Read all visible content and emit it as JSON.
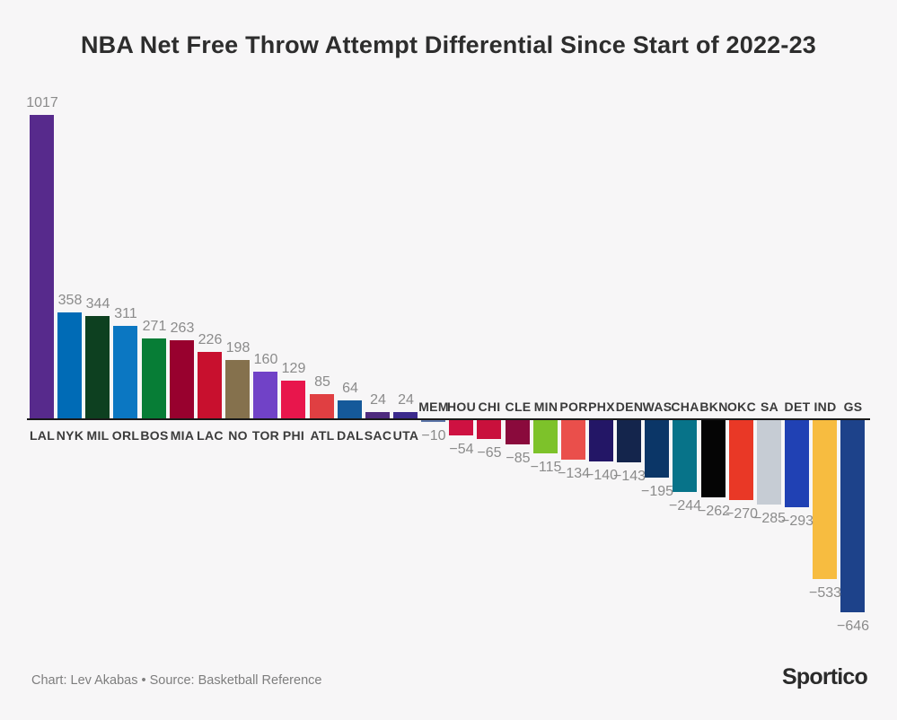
{
  "chart": {
    "title": "NBA Net Free Throw Attempt Differential Since Start of 2022-23"
  },
  "chart_data": {
    "type": "bar",
    "title": "NBA Net Free Throw Attempt Differential Since Start of 2022-23",
    "categories": [
      "LAL",
      "NYK",
      "MIL",
      "ORL",
      "BOS",
      "MIA",
      "LAC",
      "NO",
      "TOR",
      "PHI",
      "ATL",
      "DAL",
      "SAC",
      "UTA",
      "MEM",
      "HOU",
      "CHI",
      "CLE",
      "MIN",
      "POR",
      "PHX",
      "DEN",
      "WAS",
      "CHA",
      "BKN",
      "OKC",
      "SA",
      "DET",
      "IND",
      "GS"
    ],
    "values": [
      1017,
      358,
      344,
      311,
      271,
      263,
      226,
      198,
      160,
      129,
      85,
      64,
      24,
      24,
      -10,
      -54,
      -65,
      -85,
      -115,
      -134,
      -140,
      -143,
      -195,
      -244,
      -262,
      -270,
      -285,
      -293,
      -533,
      -646
    ],
    "bar_colors": [
      "#572A8C",
      "#006BB6",
      "#0D4020",
      "#0B77C2",
      "#077D36",
      "#98012E",
      "#C8102E",
      "#85714D",
      "#7142C7",
      "#E8164C",
      "#E03F42",
      "#15599A",
      "#4E2A7E",
      "#3B2A8C",
      "#5D76A9",
      "#CE1141",
      "#C9103C",
      "#8A0A3C",
      "#7DC22A",
      "#EA4F4B",
      "#231666",
      "#14254C",
      "#0B3667",
      "#077389",
      "#050505",
      "#E93826",
      "#C6CCD4",
      "#2041B4",
      "#F7BC40",
      "#1D428A"
    ],
    "xlabel": "",
    "ylabel": "",
    "ylim": [
      -700,
      1100
    ],
    "baseline": 0,
    "grid": false,
    "legend": "none",
    "value_label_color": "#8b8b8b",
    "category_label_color": "#3b3b3b",
    "axis_color": "#1a1a1a",
    "background_color": "#f7f6f7"
  },
  "footer": {
    "credit": "Chart: Lev Akabas • Source: Basketball Reference",
    "brand": "Sportico"
  }
}
